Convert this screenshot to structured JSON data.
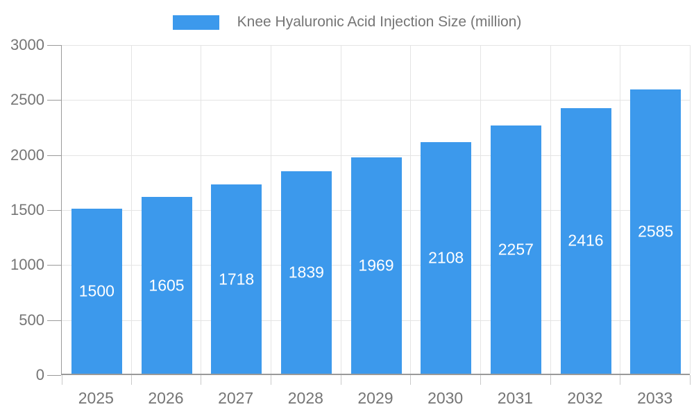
{
  "colors": {
    "bar": "#3c99ec",
    "grid": "#e4e4e4",
    "axis": "#999999",
    "tick": "#c9c9c9",
    "label": "#757575",
    "value_label": "#ffffff",
    "background": "#ffffff"
  },
  "chart_data": {
    "type": "bar",
    "title": "Knee Hyaluronic Acid Injection Size (million)",
    "legend": [
      "Knee Hyaluronic Acid Injection Size (million)"
    ],
    "legend_position": "top-center",
    "categories": [
      "2025",
      "2026",
      "2027",
      "2028",
      "2029",
      "2030",
      "2031",
      "2032",
      "2033"
    ],
    "series": [
      {
        "name": "Knee Hyaluronic Acid Injection Size (million)",
        "values": [
          1500,
          1605,
          1718,
          1839,
          1969,
          2108,
          2257,
          2416,
          2585
        ]
      }
    ],
    "bar_value_labels": "inside-center-white",
    "xlabel": "",
    "ylabel": "",
    "ylim": [
      0,
      3000
    ],
    "yticks": [
      0,
      500,
      1000,
      1500,
      2000,
      2500,
      3000
    ],
    "grid": "horizontal-and-vertical"
  }
}
